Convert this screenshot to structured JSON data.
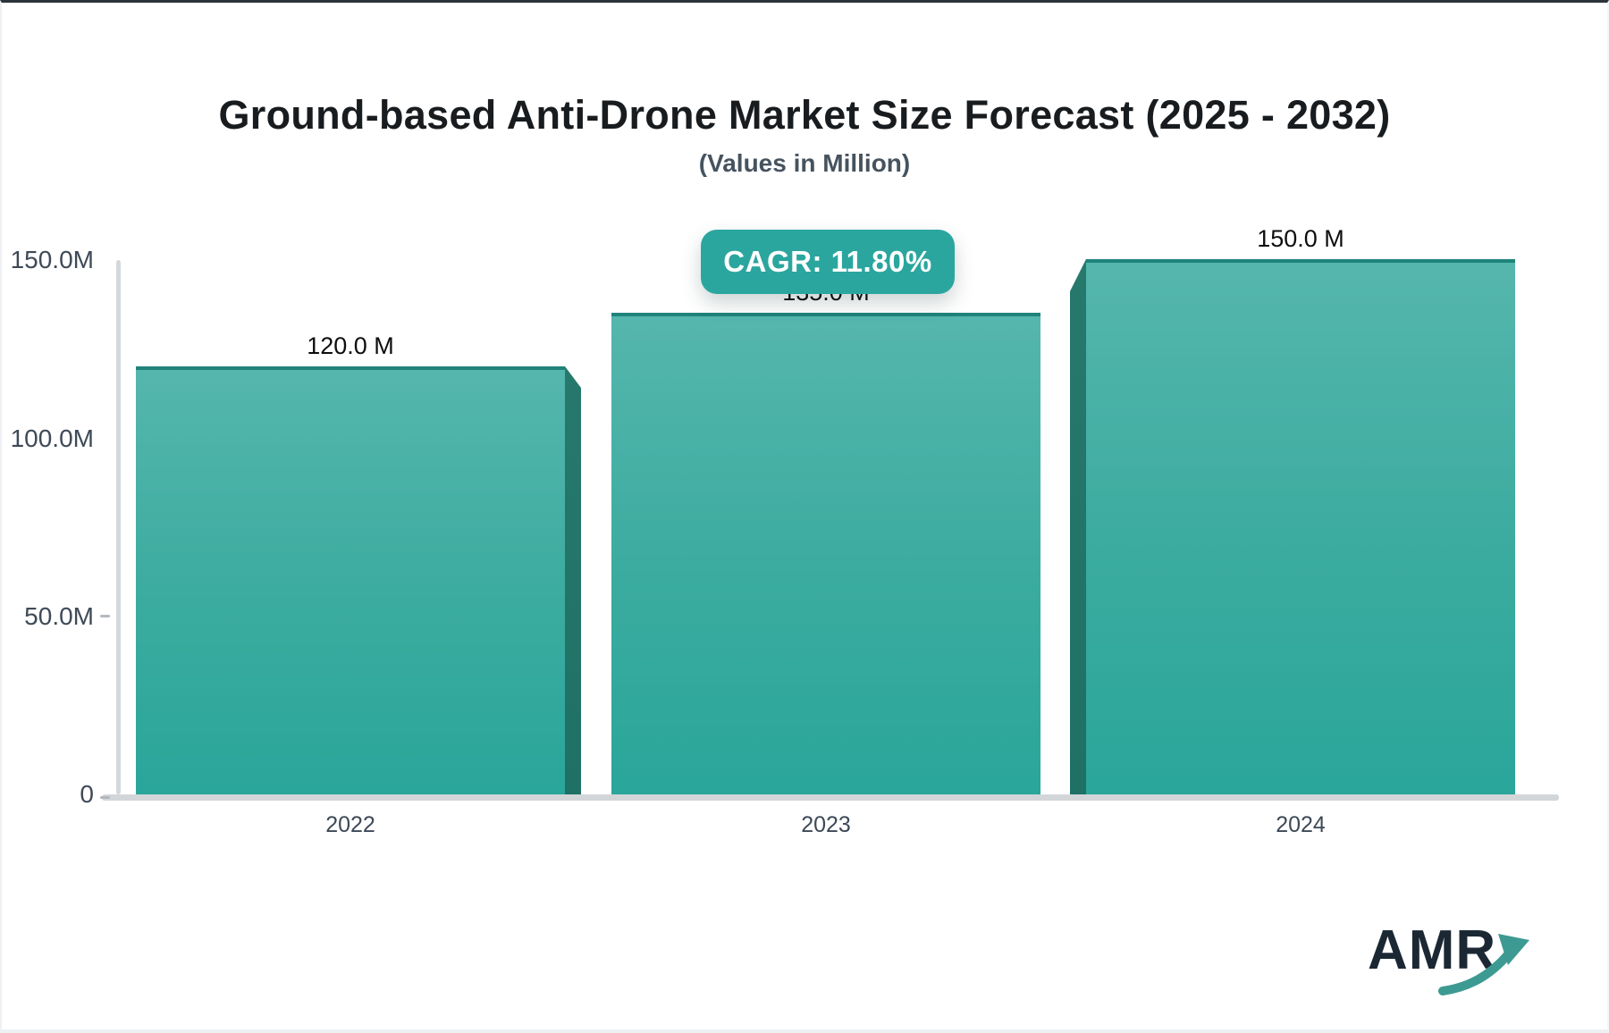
{
  "header": {
    "title": "Ground-based Anti-Drone Market Size Forecast (2025 - 2032)",
    "subtitle": "(Values in Million)"
  },
  "badge": {
    "label": "CAGR: 11.80%",
    "bg_color": "#2BA69F",
    "text_color": "#FFFFFF"
  },
  "y_axis": {
    "tick_labels": [
      "150.0M",
      "100.0M",
      "50.0M",
      "0"
    ]
  },
  "x_axis": {
    "tick_labels": [
      "2022",
      "2023",
      "2024"
    ]
  },
  "bars": [
    {
      "year": "2022",
      "value_label": "120.0 M"
    },
    {
      "year": "2023",
      "value_label": "135.0 M"
    },
    {
      "year": "2024",
      "value_label": "150.0 M"
    }
  ],
  "logo": {
    "text": "AMR",
    "arrow_icon": "trending-up-arrow",
    "arrow_color": "#3D9A92"
  },
  "colors": {
    "bar_top": "#55B6AD",
    "bar_bottom": "#2AA69A",
    "bar_edge": "#1F837A",
    "bar_side_3d": "#27796D",
    "axis_line": "#D5D8DB",
    "label_text": "#3E4A57",
    "title_text": "#191C1F"
  },
  "chart_data": {
    "type": "bar",
    "title": "Ground-based Anti-Drone Market Size Forecast (2025 - 2032)",
    "subtitle": "(Values in Million)",
    "categories": [
      "2022",
      "2023",
      "2024"
    ],
    "values": [
      120.0,
      135.0,
      150.0
    ],
    "value_labels": [
      "120.0 M",
      "135.0 M",
      "150.0 M"
    ],
    "unit": "Million",
    "xlabel": "",
    "ylabel": "",
    "ylim": [
      0,
      150
    ],
    "yticks": [
      0,
      50,
      100,
      150
    ],
    "ytick_labels": [
      "0",
      "50.0M",
      "100.0M",
      "150.0M"
    ],
    "grid": false,
    "legend": false,
    "style": "3d-extruded-bars",
    "annotations": [
      {
        "type": "badge",
        "text": "CAGR: 11.80%",
        "cagr_percent": 11.8
      }
    ]
  }
}
